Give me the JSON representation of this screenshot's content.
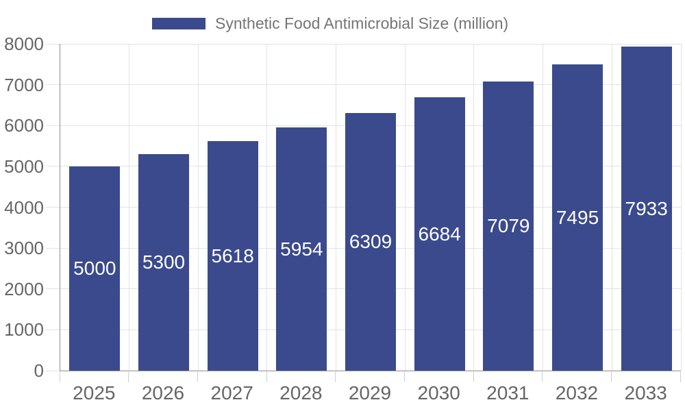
{
  "chart_data": {
    "type": "bar",
    "title": "Synthetic Food Antimicrobial Size (million)",
    "legend_position": "top-center",
    "categories": [
      "2025",
      "2026",
      "2027",
      "2028",
      "2029",
      "2030",
      "2031",
      "2032",
      "2033"
    ],
    "values": [
      5000,
      5300,
      5618,
      5954,
      6309,
      6684,
      7079,
      7495,
      7933
    ],
    "xlabel": "",
    "ylabel": "",
    "ylim": [
      0,
      8000
    ],
    "yticks": [
      0,
      1000,
      2000,
      3000,
      4000,
      5000,
      6000,
      7000,
      8000
    ],
    "grid": true,
    "bar_labels_position": "inside-center",
    "colors": {
      "bar": "#3A4A8C",
      "bar_label": "#FFFFFF"
    }
  }
}
